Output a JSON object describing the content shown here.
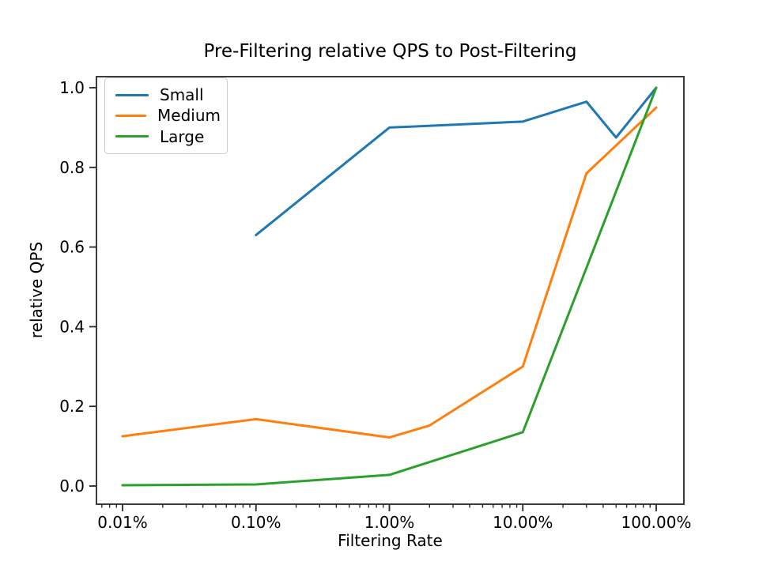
{
  "chart_data": {
    "type": "line",
    "title": "Pre-Filtering relative QPS to Post-Filtering",
    "xlabel": "Filtering Rate",
    "ylabel": "relative QPS",
    "x_scale": "log",
    "grid": false,
    "legend_position": "upper left",
    "axis_color": "#262626",
    "xlim_percent": [
      0.0065,
      158
    ],
    "ylim": [
      -0.05,
      1.05
    ],
    "x_ticks": [
      {
        "value": 0.01,
        "label": "0.01%"
      },
      {
        "value": 0.1,
        "label": "0.10%"
      },
      {
        "value": 1,
        "label": "1.00%"
      },
      {
        "value": 10,
        "label": "10.00%"
      },
      {
        "value": 100,
        "label": "100.00%"
      }
    ],
    "y_ticks": [
      {
        "value": 0.0,
        "label": "0.0"
      },
      {
        "value": 0.2,
        "label": "0.2"
      },
      {
        "value": 0.4,
        "label": "0.4"
      },
      {
        "value": 0.6,
        "label": "0.6"
      },
      {
        "value": 0.8,
        "label": "0.8"
      },
      {
        "value": 1.0,
        "label": "1.0"
      }
    ],
    "series": [
      {
        "name": "Small",
        "color": "#1f77b4",
        "points": [
          [
            0.1,
            0.63
          ],
          [
            1,
            0.9
          ],
          [
            10,
            0.915
          ],
          [
            30,
            0.965
          ],
          [
            50,
            0.875
          ],
          [
            100,
            1.0
          ]
        ]
      },
      {
        "name": "Medium",
        "color": "#ff7f0e",
        "points": [
          [
            0.01,
            0.125
          ],
          [
            0.1,
            0.168
          ],
          [
            1,
            0.122
          ],
          [
            2,
            0.152
          ],
          [
            10,
            0.3
          ],
          [
            30,
            0.785
          ],
          [
            100,
            0.95
          ]
        ]
      },
      {
        "name": "Large",
        "color": "#2ca02c",
        "points": [
          [
            0.01,
            0.002
          ],
          [
            0.1,
            0.004
          ],
          [
            1,
            0.028
          ],
          [
            10,
            0.135
          ],
          [
            100,
            1.0
          ]
        ]
      }
    ]
  }
}
